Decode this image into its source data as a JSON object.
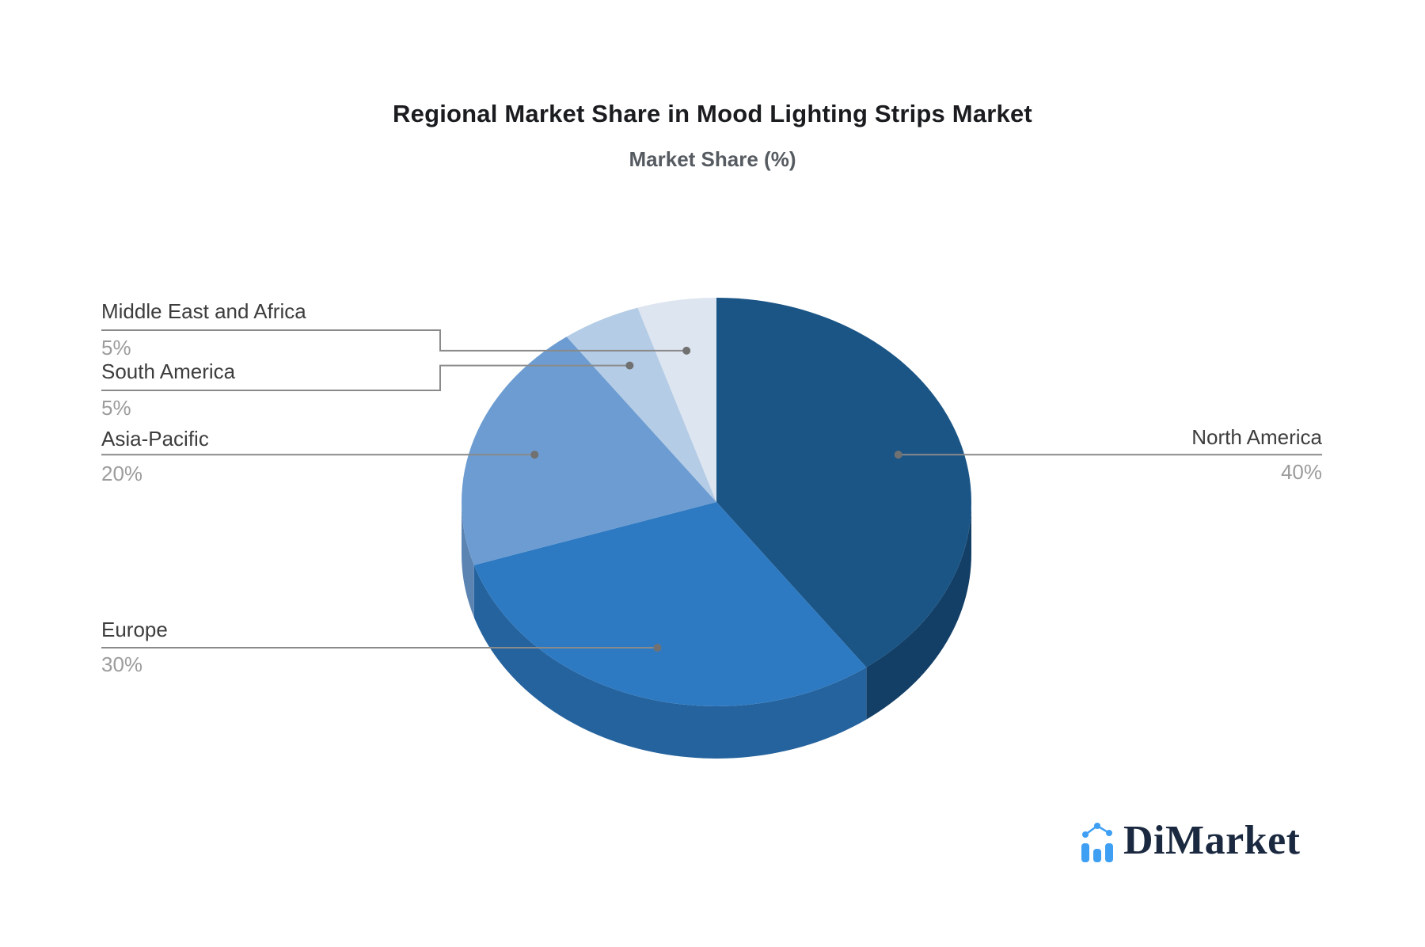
{
  "header": {
    "title": "Regional Market Share in Mood Lighting Strips Market",
    "subtitle": "Market Share (%)"
  },
  "logo": {
    "text": "DiMarket",
    "icon": "bar-chart-logo-icon",
    "icon_color": "#3f9ff3",
    "text_color": "#1b2940"
  },
  "chart_data": {
    "type": "pie",
    "style": "3d",
    "title": "Regional Market Share in Mood Lighting Strips Market",
    "subtitle": "Market Share (%)",
    "unit": "%",
    "start_angle_deg": 0,
    "direction": "clockwise",
    "categories": [
      "North America",
      "Europe",
      "Asia-Pacific",
      "South America",
      "Middle East and Africa"
    ],
    "values": [
      40,
      30,
      20,
      5,
      5
    ],
    "display_values": [
      "40%",
      "30%",
      "20%",
      "5%",
      "5%"
    ],
    "colors_top": [
      "#1a5586",
      "#2e7ac2",
      "#6c9cd1",
      "#b4cce6",
      "#dde5f0"
    ],
    "colors_side": [
      "#133f66",
      "#25639e",
      "#5b84b2",
      "#8aa6c6",
      "#b5c3d6"
    ],
    "leader_line_color": "#8a8a8a",
    "leader_dot_color": "#717171",
    "label_text_color": "#3d3d3d",
    "value_text_color": "#9c9c9c",
    "legend": "none",
    "labels_layout": "callout-left-and-right"
  }
}
